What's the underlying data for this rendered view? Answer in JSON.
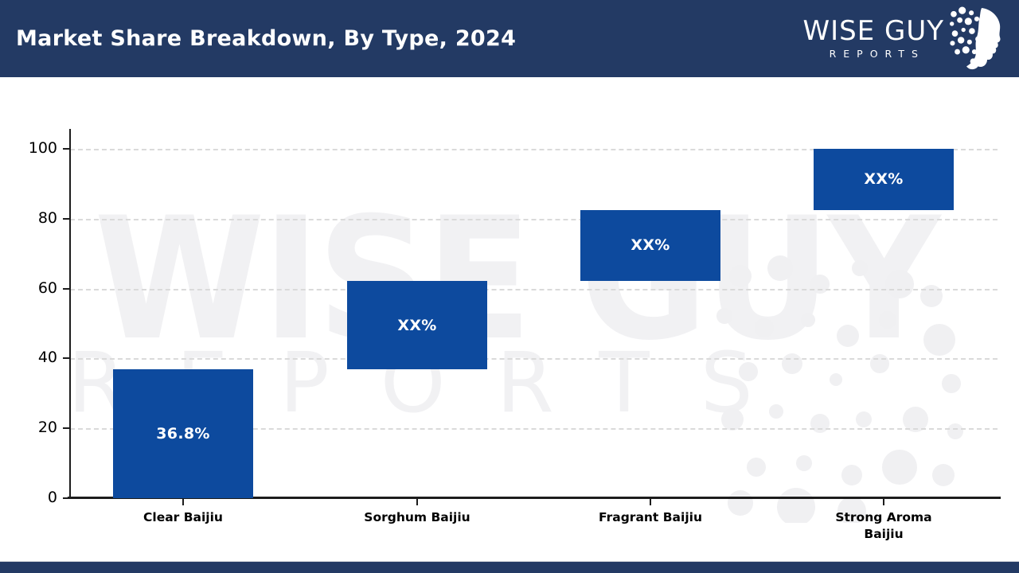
{
  "header": {
    "title": "Market Share Breakdown, By Type, 2024",
    "bg_color": "#233a64",
    "logo": {
      "line1": "WISE GUY",
      "line2": "REPORTS",
      "icon": "dotted-face-profile"
    }
  },
  "watermark": {
    "line1": "WISE GUY",
    "line2": "REPORTS",
    "color": "#f1f1f3"
  },
  "chart_data": {
    "type": "bar",
    "subtype": "waterfall-floating-bars",
    "title": "Market Share Breakdown, By Type, 2024",
    "categories": [
      "Clear Baijiu",
      "Sorghum Baijiu",
      "Fragrant Baijiu",
      "Strong Aroma Baijiu"
    ],
    "segments": [
      {
        "category": "Clear Baijiu",
        "start": 0,
        "end": 36.8,
        "label": "36.8%"
      },
      {
        "category": "Sorghum Baijiu",
        "start": 36.8,
        "end": 62.2,
        "label": "XX%"
      },
      {
        "category": "Fragrant Baijiu",
        "start": 62.2,
        "end": 82.5,
        "label": "XX%"
      },
      {
        "category": "Strong Aroma Baijiu",
        "start": 82.5,
        "end": 100,
        "label": "XX%"
      }
    ],
    "xlabel": "",
    "ylabel": "",
    "ylim": [
      0,
      100
    ],
    "y_ticks": [
      0,
      20,
      40,
      60,
      80,
      100
    ],
    "grid": "horizontal-dashed",
    "gridline_color": "#dadada",
    "bar_color": "#0d4a9e",
    "bar_label_color": "#ffffff",
    "axis_color": "#1c1c1c",
    "legend": "none"
  }
}
